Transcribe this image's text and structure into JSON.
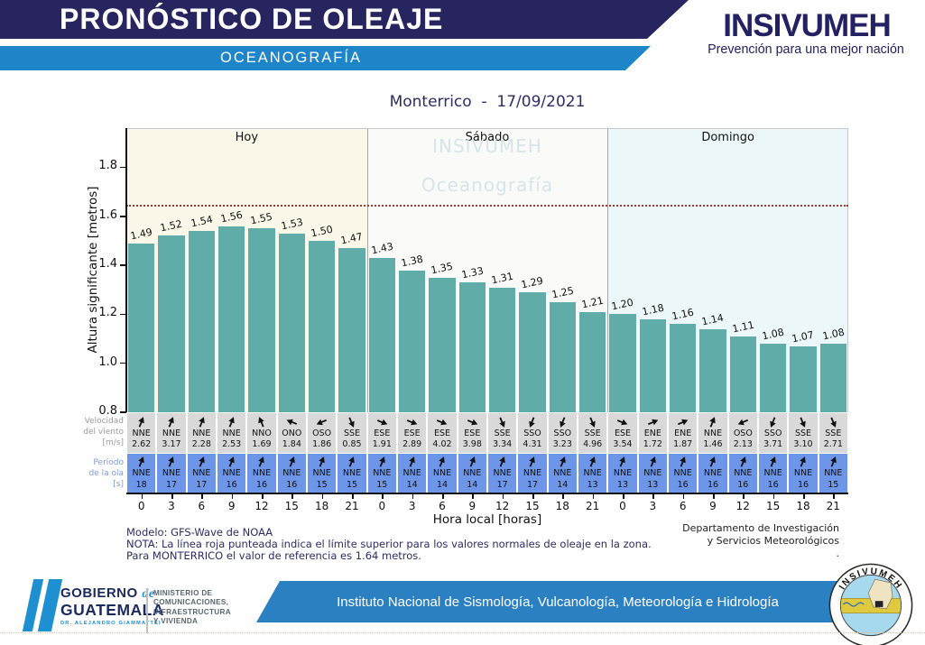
{
  "header": {
    "title": "PRONÓSTICO DE OLEAJE",
    "subtitle": "OCEANOGRAFÍA",
    "band_navy": "#272460",
    "band_blue": "#1E86C8",
    "brand": "INSIVUMEH",
    "tagline": "Prevención para una mejor nación"
  },
  "chart_data": {
    "type": "bar",
    "title": "Monterrico  -  17/09/2021",
    "xlabel": "Hora local [horas]",
    "ylabel": "Altura significante [metros]",
    "ylim": [
      0.8,
      1.96
    ],
    "y_ticks": [
      "0.8",
      "1.0",
      "1.2",
      "1.4",
      "1.6",
      "1.8"
    ],
    "grid": false,
    "bar_color": "#5FACA9",
    "reference_line": {
      "value": 1.64,
      "color": "#B2312D",
      "style": "dotted"
    },
    "day_sections": [
      {
        "label": "Hoy",
        "bg": "#FCF8E9"
      },
      {
        "label": "Sábado",
        "bg": "#FAFAF8"
      },
      {
        "label": "Domingo",
        "bg": "#ECF7FA"
      }
    ],
    "watermark": [
      "INSIVUMEH",
      "Oceanografía"
    ],
    "hours": [
      "0",
      "3",
      "6",
      "9",
      "12",
      "15",
      "18",
      "21",
      "0",
      "3",
      "6",
      "9",
      "12",
      "15",
      "18",
      "21",
      "0",
      "3",
      "6",
      "9",
      "12",
      "15",
      "18",
      "21"
    ],
    "values": [
      "1.49",
      "1.52",
      "1.54",
      "1.56",
      "1.55",
      "1.53",
      "1.50",
      "1.47",
      "1.43",
      "1.38",
      "1.35",
      "1.33",
      "1.31",
      "1.29",
      "1.25",
      "1.21",
      "1.20",
      "1.18",
      "1.16",
      "1.14",
      "1.11",
      "1.08",
      "1.07",
      "1.08"
    ],
    "wind_row": {
      "label_lines": "Velocidad\ndel viento\n[m/s]",
      "label_color": "#9B9B9B",
      "cell_bg": "#D9D9D9",
      "directions": [
        "NNE",
        "NNE",
        "NNE",
        "NNE",
        "NNO",
        "ONO",
        "OSO",
        "SSE",
        "ESE",
        "ESE",
        "ESE",
        "ESE",
        "SSE",
        "SSO",
        "SSO",
        "SSE",
        "ESE",
        "ENE",
        "ENE",
        "NNE",
        "OSO",
        "SSO",
        "SSE",
        "SSE"
      ],
      "speeds": [
        "2.62",
        "3.17",
        "2.28",
        "2.53",
        "1.69",
        "1.84",
        "1.86",
        "0.85",
        "1.91",
        "2.89",
        "4.02",
        "3.98",
        "3.34",
        "4.31",
        "3.23",
        "4.96",
        "3.54",
        "1.72",
        "1.87",
        "1.46",
        "2.13",
        "3.71",
        "3.10",
        "2.71"
      ]
    },
    "period_row": {
      "label_lines": "Período\nde la ola\n[s]",
      "label_color": "#7D9AE4",
      "cell_bg": "#6E96E8",
      "directions": [
        "NNE",
        "NNE",
        "NNE",
        "NNE",
        "NNE",
        "NNE",
        "NNE",
        "NNE",
        "NNE",
        "NNE",
        "NNE",
        "NNE",
        "NNE",
        "NNE",
        "NNE",
        "NNE",
        "NNE",
        "NNE",
        "NNE",
        "NNE",
        "NNE",
        "NNE",
        "NNE",
        "NNE"
      ],
      "values": [
        "18",
        "17",
        "17",
        "16",
        "16",
        "16",
        "15",
        "15",
        "15",
        "14",
        "14",
        "14",
        "17",
        "17",
        "14",
        "13",
        "13",
        "13",
        "16",
        "16",
        "16",
        "16",
        "16",
        "15"
      ]
    }
  },
  "notes": {
    "model": "Modelo: GFS-Wave de NOAA",
    "nota1": "NOTA: La línea roja punteada indica el límite superior para los valores normales de oleaje en la zona.",
    "nota2": "Para MONTERRICO el valor de referencia es 1.64 metros.",
    "department": "Departamento de Investigación\ny Servicios Meteorológicos\n."
  },
  "footer": {
    "gov_line1_bold": "GOBIERNO",
    "gov_line1_script": "de",
    "gov_line2": "GUATEMALA",
    "gov_line3": "DR. ALEJANDRO GIAMMATTEI",
    "ministry": "MINISTERIO DE\nCOMUNICACIONES,\nINFRAESTRUCTURA\nY VIVIENDA",
    "banner": "Instituto Nacional de Sismología, Vulcanología, Meteorología e Hidrología",
    "banner_color": "#2B80C2",
    "seal_text": "INSIVUMEH"
  }
}
